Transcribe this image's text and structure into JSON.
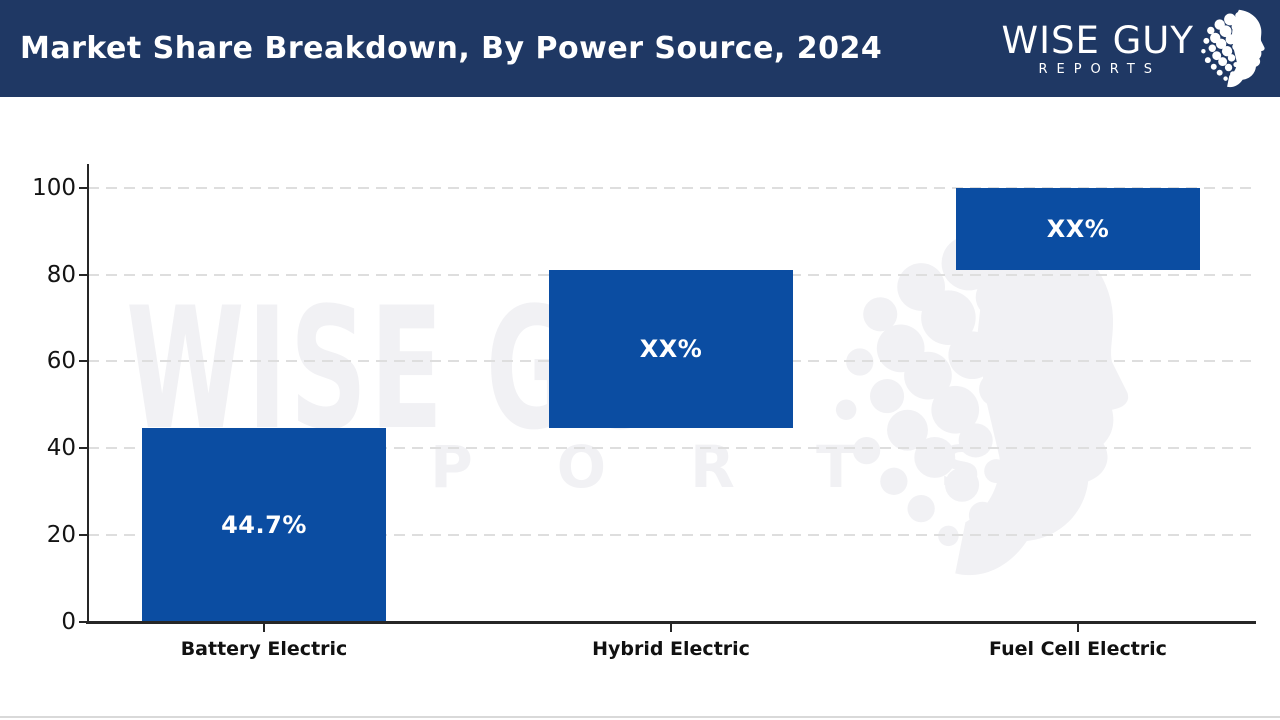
{
  "header": {
    "title": "Market Share Breakdown, By Power Source, 2024",
    "background": "#1f3864",
    "logo": {
      "line1": "WISE GUY",
      "line2": "REPORTS"
    }
  },
  "watermark": {
    "line1": "WISE GUY",
    "line2": "REPORTS"
  },
  "chart_data": {
    "type": "bar",
    "variant": "waterfall",
    "title": "Market Share Breakdown, By Power Source, 2024",
    "unit": "%",
    "categories": [
      "Battery Electric",
      "Hybrid Electric",
      "Fuel Cell Electric"
    ],
    "segments": [
      {
        "category": "Battery Electric",
        "start": 0,
        "end": 44.7,
        "label": "44.7%"
      },
      {
        "category": "Hybrid Electric",
        "start": 44.7,
        "end": 81,
        "label": "XX%"
      },
      {
        "category": "Fuel Cell Electric",
        "start": 81,
        "end": 100,
        "label": "XX%"
      }
    ],
    "xlabel": "",
    "ylabel": "",
    "ylim": [
      0,
      105
    ],
    "yticks": [
      0,
      20,
      40,
      60,
      80,
      100
    ],
    "grid": "horizontal-dashed",
    "legend": "none",
    "bar_color": "#0b4da2",
    "bar_label_color": "#ffffff"
  },
  "colors": {
    "header_bg": "#1f3864",
    "bar": "#0b4da2",
    "watermark": "#f1f1f4",
    "gridline": "#dedede",
    "axis": "#262626",
    "footer_line": "#d9d9d9"
  }
}
